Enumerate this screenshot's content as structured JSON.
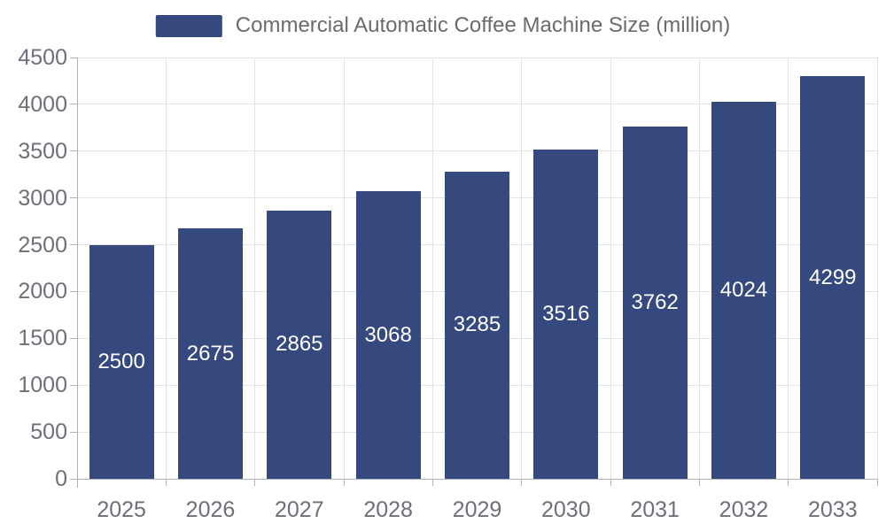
{
  "chart_data": {
    "type": "bar",
    "title": "",
    "legend": "Commercial Automatic Coffee Machine Size (million)",
    "legend_position": "top",
    "categories": [
      "2025",
      "2026",
      "2027",
      "2028",
      "2029",
      "2030",
      "2031",
      "2032",
      "2033"
    ],
    "values": [
      2500,
      2675,
      2865,
      3068,
      3285,
      3516,
      3762,
      4024,
      4299
    ],
    "xlabel": "",
    "ylabel": "",
    "ylim": [
      0,
      4500
    ],
    "ytick_step": 500,
    "grid": "on",
    "colors": {
      "bar": "#35497F",
      "bar_value_label": "#FFFFFF",
      "grid_line": "#E3E3E6",
      "axis_line": "#B1B3BA",
      "axis_tick_label": "#6E7079",
      "legend_text": "#6B6B6B"
    }
  }
}
